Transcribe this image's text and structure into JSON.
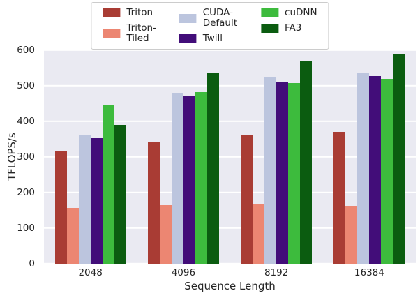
{
  "chart_data": {
    "type": "bar",
    "categories": [
      "2048",
      "4096",
      "8192",
      "16384"
    ],
    "series": [
      {
        "name": "Triton",
        "color": "#a93c34",
        "values": [
          315,
          342,
          360,
          370
        ]
      },
      {
        "name": "Triton-Tiled",
        "color": "#ec8672",
        "values": [
          157,
          165,
          166,
          163
        ]
      },
      {
        "name": "CUDA-Default",
        "color": "#bcc5de",
        "values": [
          362,
          481,
          525,
          537
        ]
      },
      {
        "name": "Twill",
        "color": "#420d79",
        "values": [
          352,
          470,
          511,
          527
        ]
      },
      {
        "name": "cuDNN",
        "color": "#3dbb3d",
        "values": [
          447,
          483,
          507,
          520
        ]
      },
      {
        "name": "FA3",
        "color": "#0b5c10",
        "values": [
          390,
          535,
          570,
          590
        ]
      }
    ],
    "title": "",
    "xlabel": "Sequence Length",
    "ylabel": "TFLOPS/s",
    "ylim": [
      0,
      600
    ],
    "yticks": [
      0,
      100,
      200,
      300,
      400,
      500,
      600
    ],
    "grid": true,
    "legend_position": "top-center",
    "legend_columns": 3,
    "plot_background": "#eaeaf2",
    "gridline_color": "#ffffff"
  }
}
